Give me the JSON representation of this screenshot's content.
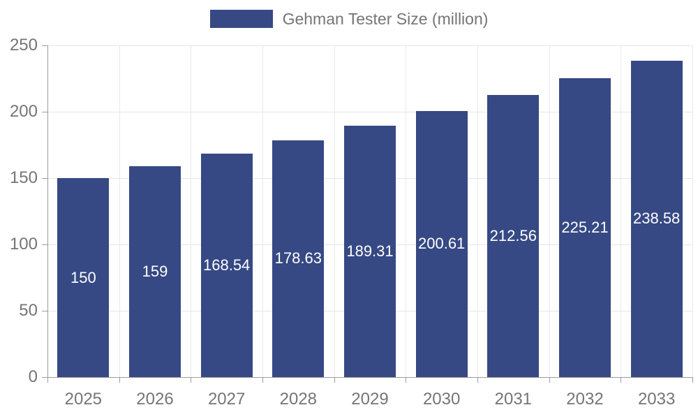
{
  "chart_data": {
    "type": "bar",
    "title": "Gehman Tester Size (million)",
    "legend_label": "Gehman Tester Size (million)",
    "categories": [
      "2025",
      "2026",
      "2027",
      "2028",
      "2029",
      "2030",
      "2031",
      "2032",
      "2033"
    ],
    "values": [
      150,
      159,
      168.54,
      178.63,
      189.31,
      200.61,
      212.56,
      225.21,
      238.58
    ],
    "value_labels": [
      "150",
      "159",
      "168.54",
      "178.63",
      "189.31",
      "200.61",
      "212.56",
      "225.21",
      "238.58"
    ],
    "xlabel": "",
    "ylabel": "",
    "ylim": [
      0,
      250
    ],
    "yticks": [
      0,
      50,
      100,
      150,
      200,
      250
    ],
    "ytick_labels": [
      "0",
      "50",
      "100",
      "150",
      "200",
      "250"
    ],
    "grid": "on",
    "legend_position": "top-center",
    "colors": {
      "bar": "#364984",
      "bar_value_text": "#ffffff",
      "axis_text": "#757575",
      "gridline": "#e5e5ea",
      "axis_line": "#9b9b9b",
      "background": "#ffffff"
    }
  }
}
